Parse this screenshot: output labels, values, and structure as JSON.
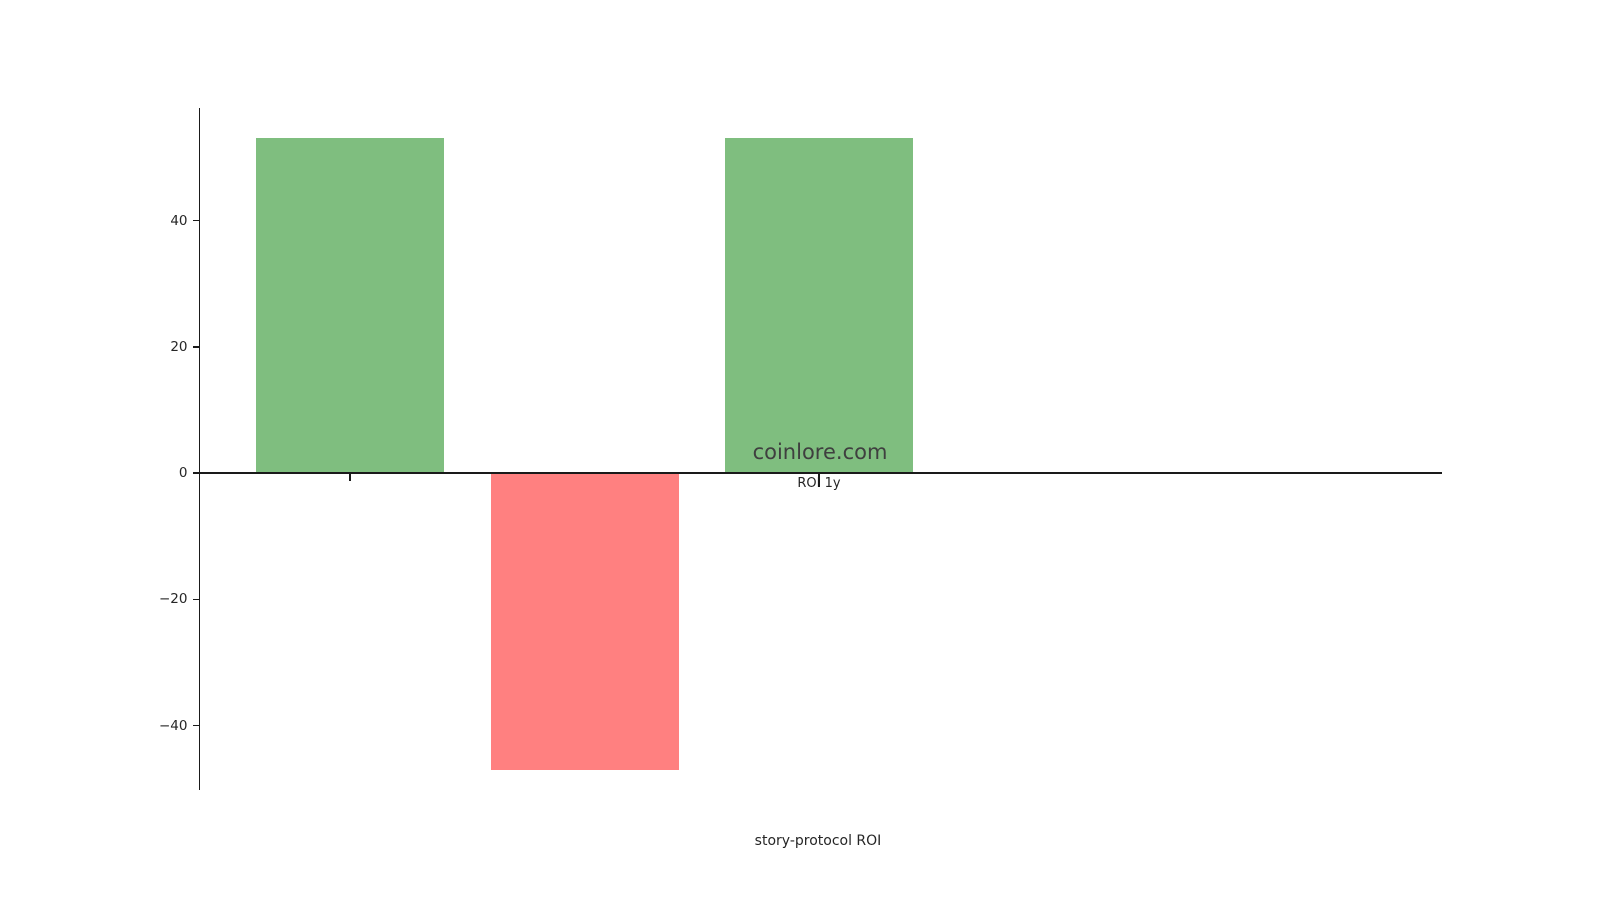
{
  "chart_data": {
    "type": "bar",
    "title": "story-protocol ROI",
    "watermark": "coinlore.com",
    "categories": [
      "",
      "",
      "ROI 1y"
    ],
    "values": [
      53,
      -47,
      53
    ],
    "yticks": {
      "values": [
        40,
        20,
        0,
        -20,
        -40
      ],
      "labels": [
        "40",
        "20",
        "0",
        "−20",
        "−40"
      ]
    },
    "ylim": [
      -50.2,
      57.8
    ],
    "grid": false,
    "legend_position": "none",
    "colors": {
      "positive_bar": "#7fbe7f",
      "negative_bar": "#ff8080",
      "axis": "#1a1a1a",
      "tick_text": "#262626",
      "watermark_text": "#3f3f3f",
      "background": "#ffffff"
    }
  }
}
